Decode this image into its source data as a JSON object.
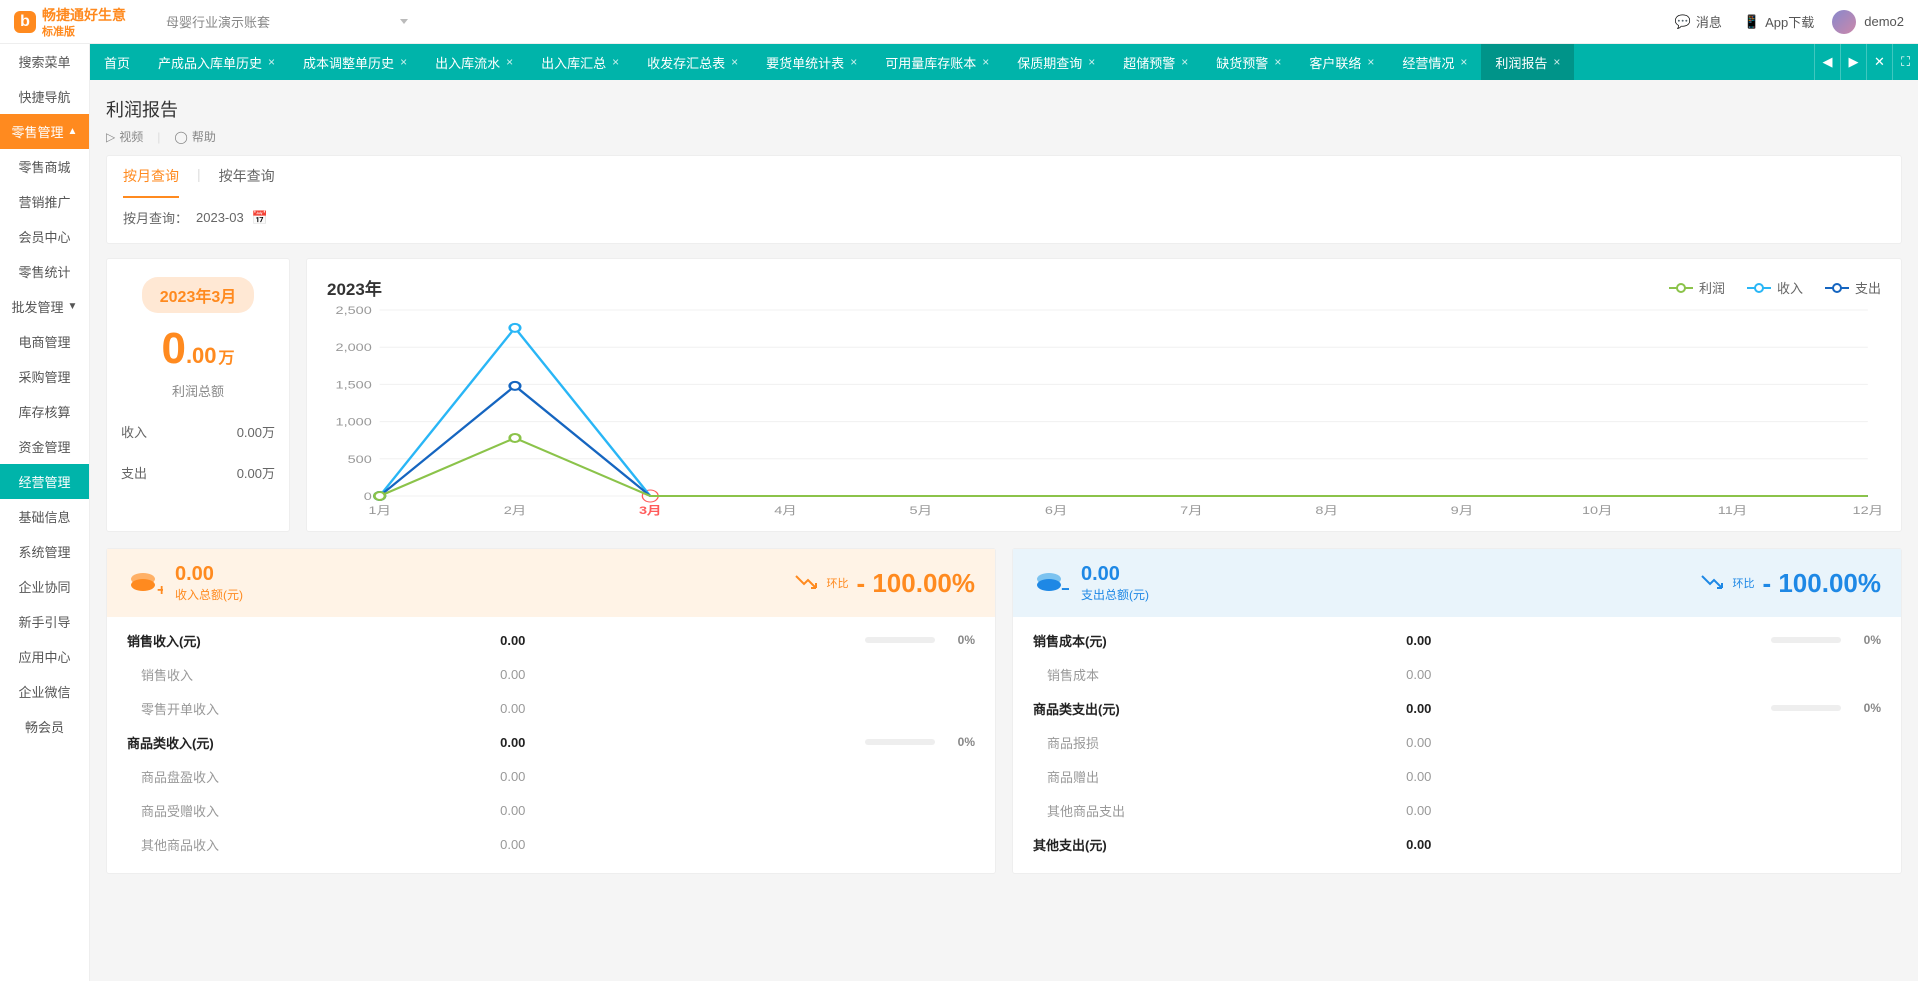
{
  "top": {
    "brand": "畅捷通好生意",
    "edition": "标准版",
    "account": "母婴行业演示账套",
    "msg": "消息",
    "app": "App下载",
    "user": "demo2"
  },
  "sidebar": {
    "items": [
      {
        "label": "搜索菜单"
      },
      {
        "label": "快捷导航"
      },
      {
        "label": "零售管理",
        "active": true,
        "caret": true
      },
      {
        "label": "零售商城"
      },
      {
        "label": "营销推广"
      },
      {
        "label": "会员中心"
      },
      {
        "label": "零售统计"
      },
      {
        "label": "批发管理",
        "caret": true
      },
      {
        "label": "电商管理"
      },
      {
        "label": "采购管理"
      },
      {
        "label": "库存核算"
      },
      {
        "label": "资金管理"
      },
      {
        "label": "经营管理",
        "active2": true
      },
      {
        "label": "基础信息"
      },
      {
        "label": "系统管理"
      },
      {
        "label": "企业协同"
      },
      {
        "label": "新手引导"
      },
      {
        "label": "应用中心"
      },
      {
        "label": "企业微信"
      },
      {
        "label": "畅会员"
      }
    ]
  },
  "tabs": [
    {
      "label": "首页",
      "closable": false
    },
    {
      "label": "产成品入库单历史",
      "closable": true
    },
    {
      "label": "成本调整单历史",
      "closable": true
    },
    {
      "label": "出入库流水",
      "closable": true
    },
    {
      "label": "出入库汇总",
      "closable": true
    },
    {
      "label": "收发存汇总表",
      "closable": true
    },
    {
      "label": "要货单统计表",
      "closable": true
    },
    {
      "label": "可用量库存账本",
      "closable": true
    },
    {
      "label": "保质期查询",
      "closable": true
    },
    {
      "label": "超储预警",
      "closable": true
    },
    {
      "label": "缺货预警",
      "closable": true
    },
    {
      "label": "客户联络",
      "closable": true
    },
    {
      "label": "经营情况",
      "closable": true
    },
    {
      "label": "利润报告",
      "closable": true,
      "active": true
    }
  ],
  "page": {
    "title": "利润报告",
    "video": "视频",
    "help": "帮助",
    "tab_month": "按月查询",
    "tab_year": "按年查询",
    "query_label": "按月查询：",
    "query_value": "2023-03"
  },
  "summary": {
    "period": "2023年3月",
    "big_int": "0",
    "big_dec": ".00",
    "big_unit": "万",
    "big_label": "利润总额",
    "rows": [
      {
        "k": "收入",
        "v": "0.00万"
      },
      {
        "k": "支出",
        "v": "0.00万"
      }
    ]
  },
  "chart": {
    "title": "2023年",
    "legend": [
      {
        "label": "利润",
        "color": "#8bc34a"
      },
      {
        "label": "收入",
        "color": "#29b6f6"
      },
      {
        "label": "支出",
        "color": "#1565c0"
      }
    ],
    "y": {
      "ticks": [
        0,
        500,
        1000,
        1500,
        2000,
        2500
      ],
      "max": 2500
    },
    "x": {
      "labels": [
        "1月",
        "2月",
        "3月",
        "4月",
        "5月",
        "6月",
        "7月",
        "8月",
        "9月",
        "10月",
        "11月",
        "12月"
      ],
      "highlight_index": 2
    },
    "series": {
      "profit": [
        0,
        780,
        0,
        0,
        0,
        0,
        0,
        0,
        0,
        0,
        0,
        0
      ],
      "income": [
        0,
        2260,
        0,
        0,
        0,
        0,
        0,
        0,
        0,
        0,
        0,
        0
      ],
      "expense": [
        0,
        1480,
        0,
        0,
        0,
        0,
        0,
        0,
        0,
        0,
        0,
        0
      ]
    },
    "colors": {
      "profit": "#8bc34a",
      "income": "#29b6f6",
      "expense": "#1565c0",
      "grid": "#f0f0f0",
      "axis": "#e0e0e0",
      "text": "#999"
    }
  },
  "income_panel": {
    "value": "0.00",
    "label": "收入总额(元)",
    "hb": "环比",
    "pct": "- 100.00%",
    "rows": [
      {
        "name": "销售收入(元)",
        "val": "0.00",
        "bar": "0%",
        "bold": true
      },
      {
        "name": "销售收入",
        "val": "0.00",
        "sub": true
      },
      {
        "name": "零售开单收入",
        "val": "0.00",
        "sub": true
      },
      {
        "name": "商品类收入(元)",
        "val": "0.00",
        "bar": "0%",
        "bold": true
      },
      {
        "name": "商品盘盈收入",
        "val": "0.00",
        "sub": true
      },
      {
        "name": "商品受赠收入",
        "val": "0.00",
        "sub": true
      },
      {
        "name": "其他商品收入",
        "val": "0.00",
        "sub": true
      }
    ]
  },
  "expense_panel": {
    "value": "0.00",
    "label": "支出总额(元)",
    "hb": "环比",
    "pct": "- 100.00%",
    "rows": [
      {
        "name": "销售成本(元)",
        "val": "0.00",
        "bar": "0%",
        "bold": true
      },
      {
        "name": "销售成本",
        "val": "0.00",
        "sub": true
      },
      {
        "name": "商品类支出(元)",
        "val": "0.00",
        "bar": "0%",
        "bold": true
      },
      {
        "name": "商品报损",
        "val": "0.00",
        "sub": true
      },
      {
        "name": "商品赠出",
        "val": "0.00",
        "sub": true
      },
      {
        "name": "其他商品支出",
        "val": "0.00",
        "sub": true
      },
      {
        "name": "其他支出(元)",
        "val": "0.00",
        "bar": "",
        "bold": true
      }
    ]
  }
}
